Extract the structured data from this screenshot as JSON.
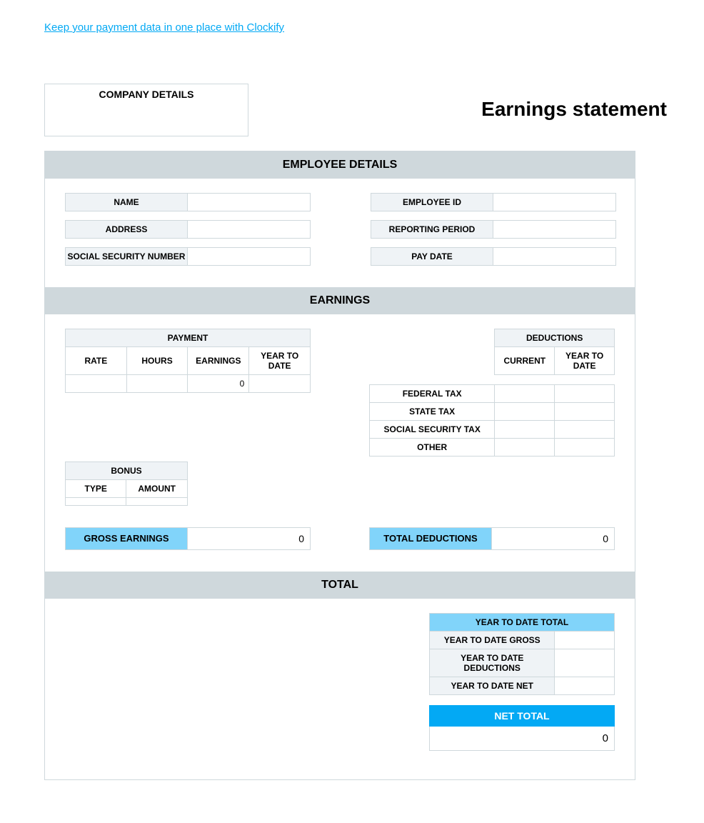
{
  "colors": {
    "link": "#03a9f4",
    "header_bg": "#cfd8dc",
    "light_bg": "#eff3f6",
    "blue_bg": "#81d4fa",
    "net_bg": "#03a9f4",
    "border": "#cfd8dc",
    "text": "#000000",
    "white": "#ffffff"
  },
  "fonts": {
    "base_family": "Arial, Helvetica, sans-serif",
    "title_size": 28,
    "section_header_size": 16,
    "label_size": 12
  },
  "top_link": "Keep your payment data in one place with Clockify",
  "company_box_label": "COMPANY DETAILS",
  "page_title": "Earnings statement",
  "sections": {
    "employee": {
      "header": "EMPLOYEE DETAILS",
      "fields": {
        "name_label": "NAME",
        "name_value": "",
        "employee_id_label": "EMPLOYEE ID",
        "employee_id_value": "",
        "address_label": "ADDRESS",
        "address_value": "",
        "reporting_period_label": "REPORTING PERIOD",
        "reporting_period_value": "",
        "ssn_label": "SOCIAL SECURITY NUMBER",
        "ssn_value": "",
        "pay_date_label": "PAY DATE",
        "pay_date_value": ""
      }
    },
    "earnings": {
      "header": "EARNINGS",
      "payment": {
        "title": "PAYMENT",
        "columns": {
          "rate": "RATE",
          "hours": "HOURS",
          "earnings": "EARNINGS",
          "ytd": "YEAR TO DATE"
        },
        "row": {
          "rate": "",
          "hours": "",
          "earnings": "0",
          "ytd": ""
        }
      },
      "deductions": {
        "title": "DEDUCTIONS",
        "columns": {
          "current": "CURRENT",
          "ytd": "YEAR TO DATE"
        },
        "rows": {
          "federal": {
            "label": "FEDERAL TAX",
            "current": "",
            "ytd": ""
          },
          "state": {
            "label": "STATE TAX",
            "current": "",
            "ytd": ""
          },
          "ss": {
            "label": "SOCIAL SECURITY TAX",
            "current": "",
            "ytd": ""
          },
          "other": {
            "label": "OTHER",
            "current": "",
            "ytd": ""
          }
        }
      },
      "bonus": {
        "title": "BONUS",
        "columns": {
          "type": "TYPE",
          "amount": "AMOUNT"
        },
        "row": {
          "type": "",
          "amount": ""
        }
      },
      "gross_label": "GROSS EARNINGS",
      "gross_value": "0",
      "total_deductions_label": "TOTAL DEDUCTIONS",
      "total_deductions_value": "0"
    },
    "total": {
      "header": "TOTAL",
      "ytd_title": "YEAR TO DATE TOTAL",
      "ytd_rows": {
        "gross": {
          "label": "YEAR TO DATE GROSS",
          "value": ""
        },
        "deductions": {
          "label": "YEAR TO DATE DEDUCTIONS",
          "value": ""
        },
        "net": {
          "label": "YEAR TO DATE NET",
          "value": ""
        }
      },
      "net_total_label": "NET TOTAL",
      "net_total_value": "0"
    }
  }
}
